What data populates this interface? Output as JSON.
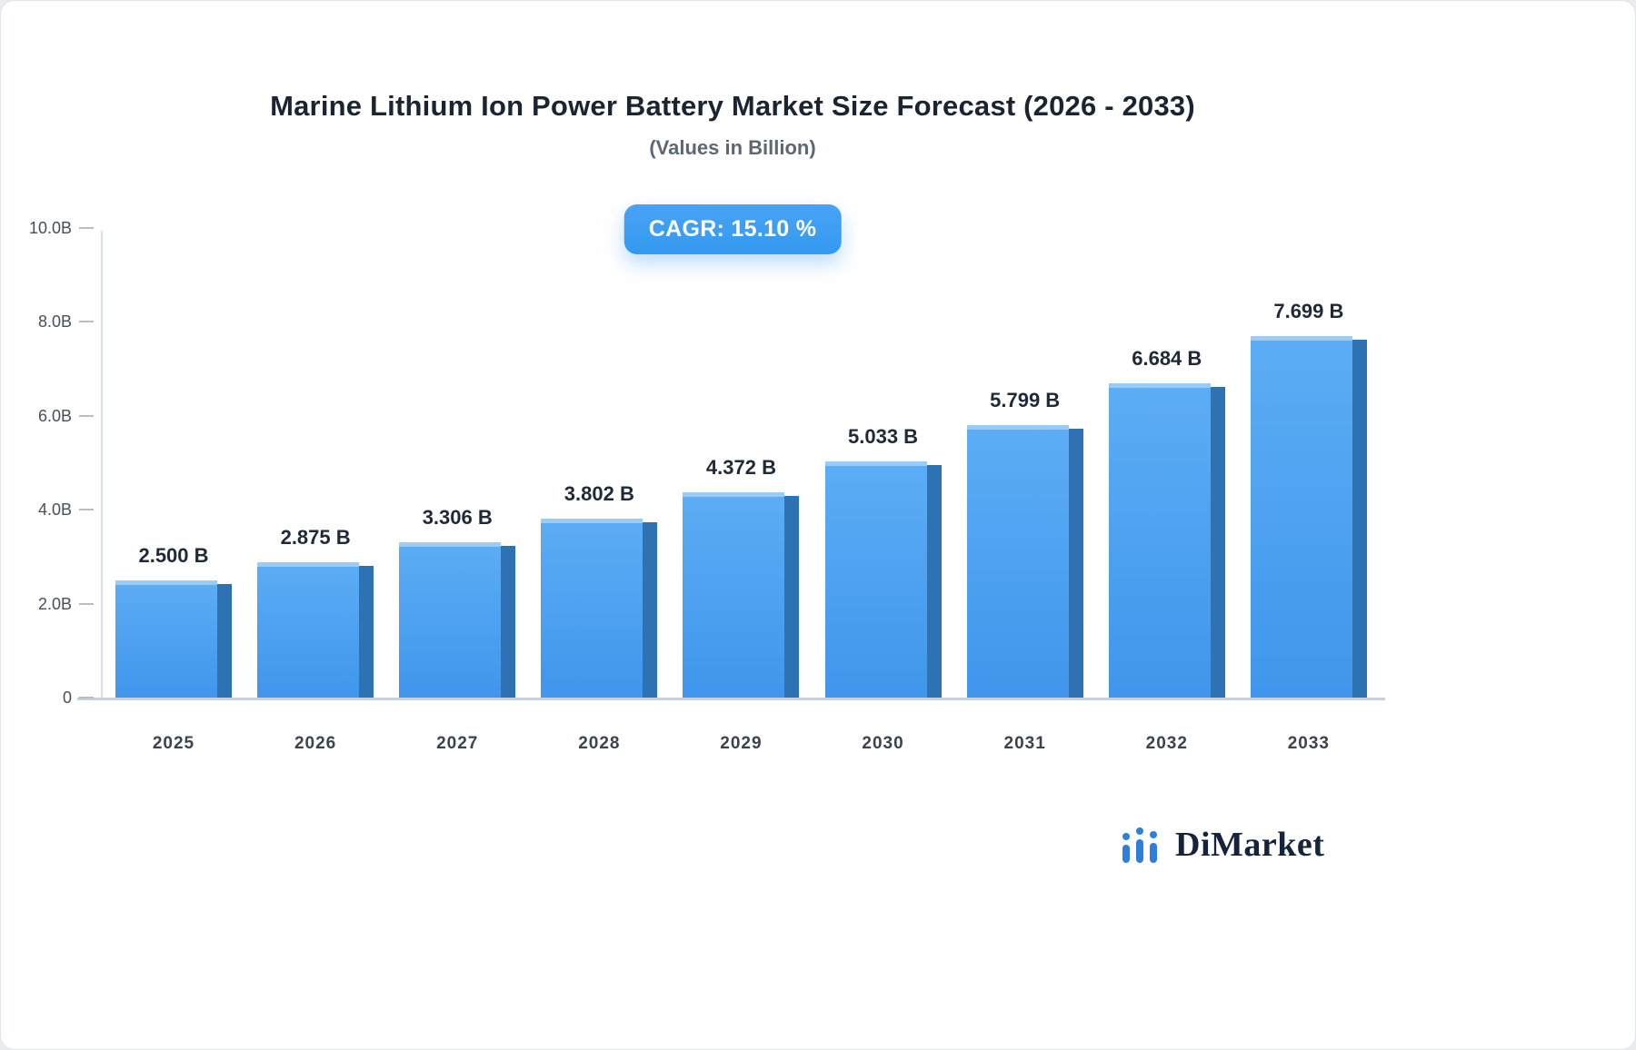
{
  "header": {
    "title": "Marine Lithium Ion Power Battery Market Size Forecast (2026 - 2033)",
    "subtitle": "(Values in Billion)",
    "cagr_label": "CAGR: 15.10 %"
  },
  "chart_data": {
    "type": "bar",
    "title": "Marine Lithium Ion Power Battery Market Size Forecast (2026 - 2033)",
    "subtitle": "(Values in Billion)",
    "categories": [
      "2025",
      "2026",
      "2027",
      "2028",
      "2029",
      "2030",
      "2031",
      "2032",
      "2033"
    ],
    "values": [
      2.5,
      2.875,
      3.306,
      3.802,
      4.372,
      5.033,
      5.799,
      6.684,
      7.699
    ],
    "value_labels": [
      "2.500 B",
      "2.875 B",
      "3.306 B",
      "3.802 B",
      "4.372 B",
      "5.033 B",
      "5.799 B",
      "6.684 B",
      "7.699 B"
    ],
    "xlabel": "",
    "ylabel": "",
    "ylim": [
      0,
      10
    ],
    "y_tick_values": [
      0,
      2,
      4,
      6,
      8,
      10
    ],
    "y_tick_labels": [
      "0",
      "2.0B",
      "4.0B",
      "6.0B",
      "8.0B",
      "10.0B"
    ],
    "grid": false,
    "legend": "none",
    "cagr": "15.10 %",
    "colors": {
      "bar_fill_top": "#5cadf4",
      "bar_fill_bottom": "#3f96ec",
      "bar_side": "#2e72b4",
      "badge_background": "#339af0",
      "badge_text": "#ffffff",
      "title_text": "#1b2431",
      "subtitle_text": "#5d6673",
      "axis_line": "#cbd1d9"
    }
  },
  "footer": {
    "brand": "DiMarket",
    "logo_icon": "bar-chart-icon",
    "brand_color": "#16233c",
    "icon_color": "#2e7fd9"
  }
}
